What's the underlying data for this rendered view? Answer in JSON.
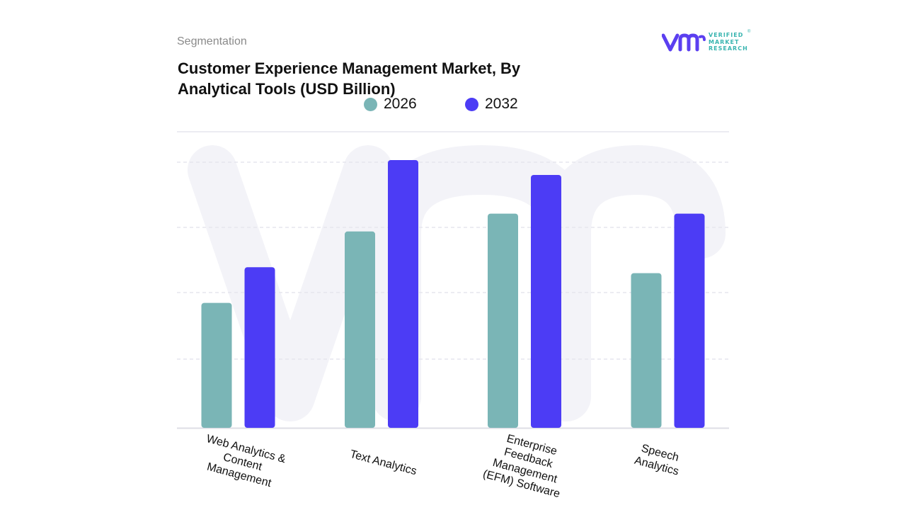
{
  "header": {
    "segment_label": "Segmentation",
    "title_line1": "Customer Experience Management Market, By",
    "title_line2": "Analytical Tools (USD Billion)"
  },
  "logo": {
    "line1": "VERIFIED",
    "line2": "MARKET",
    "line3": "RESEARCH",
    "registered": "®"
  },
  "colors": {
    "series_2026": "#7ab5b6",
    "series_2032": "#4c3cf5",
    "grid": "#e6e6ee",
    "watermark": "#f3f3f8"
  },
  "chart_data": {
    "type": "bar",
    "title": "Customer Experience Management Market, By Analytical Tools (USD Billion)",
    "xlabel": "",
    "ylabel": "",
    "ylim": [
      0,
      5
    ],
    "grid": true,
    "legend_position": "top",
    "categories": [
      "Web Analytics & Content Management",
      "Text Analytics",
      "Enterprise Feedback Management (EFM) Software",
      "Speech Analytics"
    ],
    "category_label_lines": [
      [
        "Web Analytics  &",
        "Content",
        "Management"
      ],
      [
        "Text Analytics"
      ],
      [
        "Enterprise",
        "Feedback",
        "Management",
        "(EFM) Software"
      ],
      [
        "Speech",
        "Analytics"
      ]
    ],
    "series": [
      {
        "name": "2026",
        "values": [
          2.1,
          3.3,
          3.6,
          2.6
        ]
      },
      {
        "name": "2032",
        "values": [
          2.7,
          4.5,
          4.25,
          3.6
        ]
      }
    ]
  }
}
